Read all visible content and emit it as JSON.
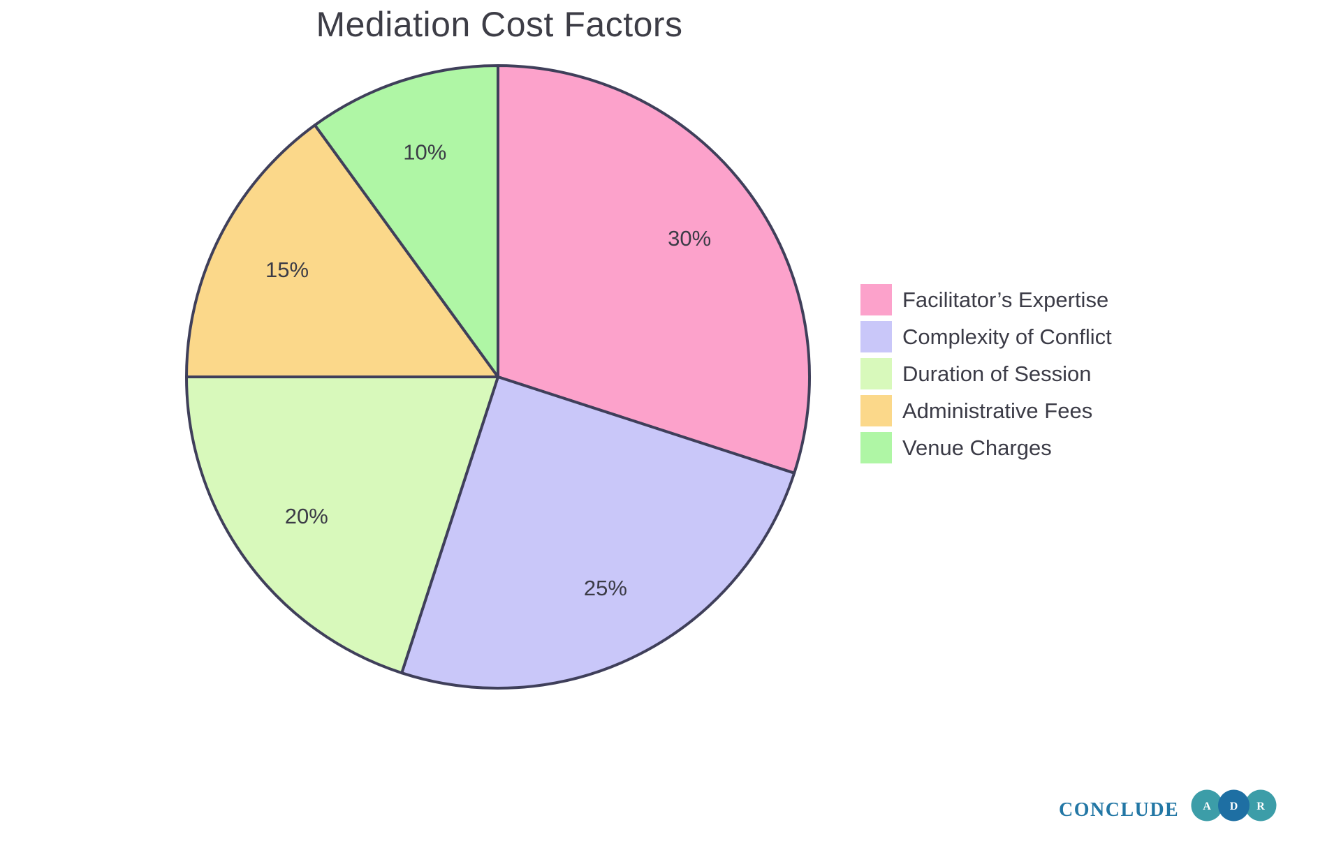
{
  "chart_data": {
    "type": "pie",
    "title": "Mediation Cost Factors",
    "categories": [
      "Facilitator’s Expertise",
      "Complexity of Conflict",
      "Duration of Session",
      "Administrative Fees",
      "Venue Charges"
    ],
    "values": [
      30,
      25,
      20,
      15,
      10
    ],
    "slice_labels": [
      "30%",
      "25%",
      "20%",
      "15%",
      "10%"
    ],
    "colors": [
      "#FCA2CB",
      "#C9C7F9",
      "#D8F9BB",
      "#FBD88A",
      "#AFF6A5"
    ],
    "slice_border_color": "#3F3F5A",
    "label_color": "#3B3B46",
    "start_angle": "12-oclock",
    "direction": "clockwise",
    "legend_position": "right",
    "background": "#FFFFFF"
  },
  "branding": {
    "wordmark": "CONCLUDE",
    "wordmark_color": "#2377A5",
    "badges": [
      {
        "letter": "A",
        "color": "#3C9DA8"
      },
      {
        "letter": "D",
        "color": "#1E6FA3"
      },
      {
        "letter": "R",
        "color": "#3C9DA8"
      }
    ],
    "badge_letter_color": "#FFFFFF"
  }
}
